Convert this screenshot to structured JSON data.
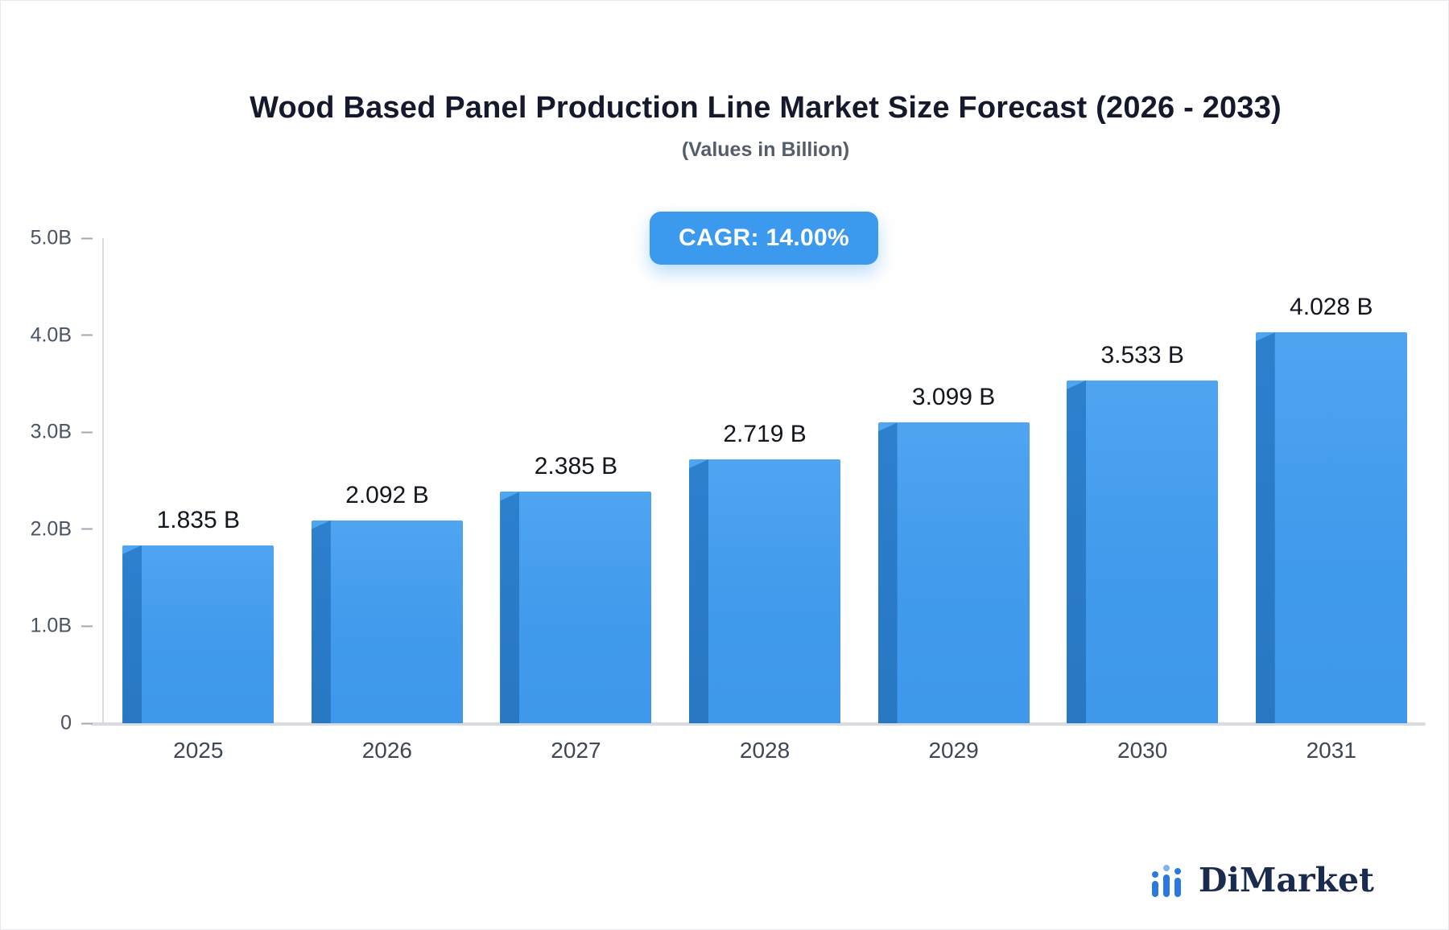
{
  "header": {
    "title": "Wood Based Panel Production Line Market Size Forecast (2026 - 2033)",
    "subtitle": "(Values in Billion)"
  },
  "badge": {
    "label": "CAGR: 14.00%"
  },
  "chart_data": {
    "type": "bar",
    "title": "Wood Based Panel Production Line Market Size Forecast (2026 - 2033)",
    "subtitle": "(Values in Billion)",
    "categories": [
      "2025",
      "2026",
      "2027",
      "2028",
      "2029",
      "2030",
      "2031"
    ],
    "values": [
      1.835,
      2.092,
      2.385,
      2.719,
      3.099,
      3.533,
      4.028
    ],
    "value_labels": [
      "1.835 B",
      "2.092 B",
      "2.385 B",
      "2.719 B",
      "3.099 B",
      "3.533 B",
      "4.028 B"
    ],
    "xlabel": "",
    "ylabel": "",
    "ylim": [
      0,
      5
    ],
    "yticks": [
      {
        "value": 0,
        "label": "0"
      },
      {
        "value": 1,
        "label": "1.0B"
      },
      {
        "value": 2,
        "label": "2.0B"
      },
      {
        "value": 3,
        "label": "3.0B"
      },
      {
        "value": 4,
        "label": "4.0B"
      },
      {
        "value": 5,
        "label": "5.0B"
      }
    ],
    "grid": false,
    "legend": false,
    "annotations": [
      "CAGR: 14.00%"
    ]
  },
  "logo": {
    "text": "DiMarket",
    "icon": "bar-chart-icon"
  },
  "colors": {
    "bar_face_top": "#4fa5f0",
    "bar_face_bottom": "#3e98ec",
    "bar_side": "#2877c3",
    "badge_bg": "#3b9aee",
    "axis": "#d8dce1",
    "title_text": "#15192c",
    "logo_blue": "#2a79e2",
    "logo_navy": "#1b2b4d"
  }
}
